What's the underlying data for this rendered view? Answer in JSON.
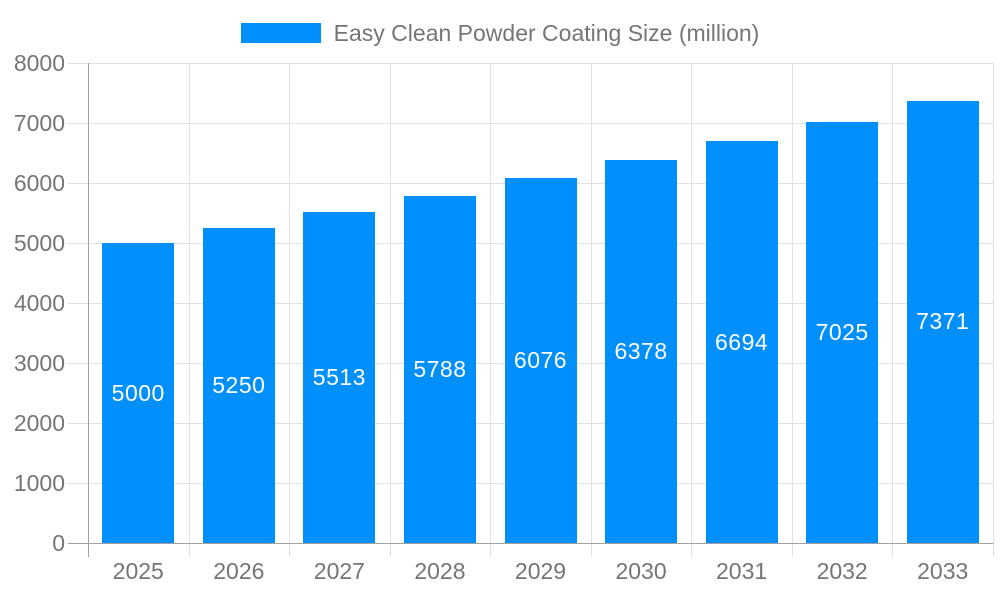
{
  "legend": {
    "position": "top-center"
  },
  "chart_data": {
    "type": "bar",
    "title": "Easy Clean Powder Coating Size (million)",
    "categories": [
      "2025",
      "2026",
      "2027",
      "2028",
      "2029",
      "2030",
      "2031",
      "2032",
      "2033"
    ],
    "series": [
      {
        "name": "Easy Clean Powder Coating Size (million)",
        "values": [
          5000,
          5250,
          5513,
          5788,
          6076,
          6378,
          6694,
          7025,
          7371
        ]
      }
    ],
    "bar_value_labels": [
      "5000",
      "5250",
      "5513",
      "5788",
      "6076",
      "6378",
      "6694",
      "7025",
      "7371"
    ],
    "xlabel": "",
    "ylabel": "",
    "ylim": [
      0,
      8000
    ],
    "ytick_step": 1000,
    "yticks": [
      "0",
      "1000",
      "2000",
      "3000",
      "4000",
      "5000",
      "6000",
      "7000",
      "8000"
    ],
    "grid": {
      "horizontal": true,
      "vertical": true
    },
    "legend_position": "top-center",
    "colors": {
      "bar": "#008FFB",
      "bar_value_label": "#FFFFFF",
      "axis_text": "#757575",
      "axis_line": "#A0A0A0",
      "grid_line": "#E0E0E0",
      "background": "#FFFFFF"
    }
  }
}
